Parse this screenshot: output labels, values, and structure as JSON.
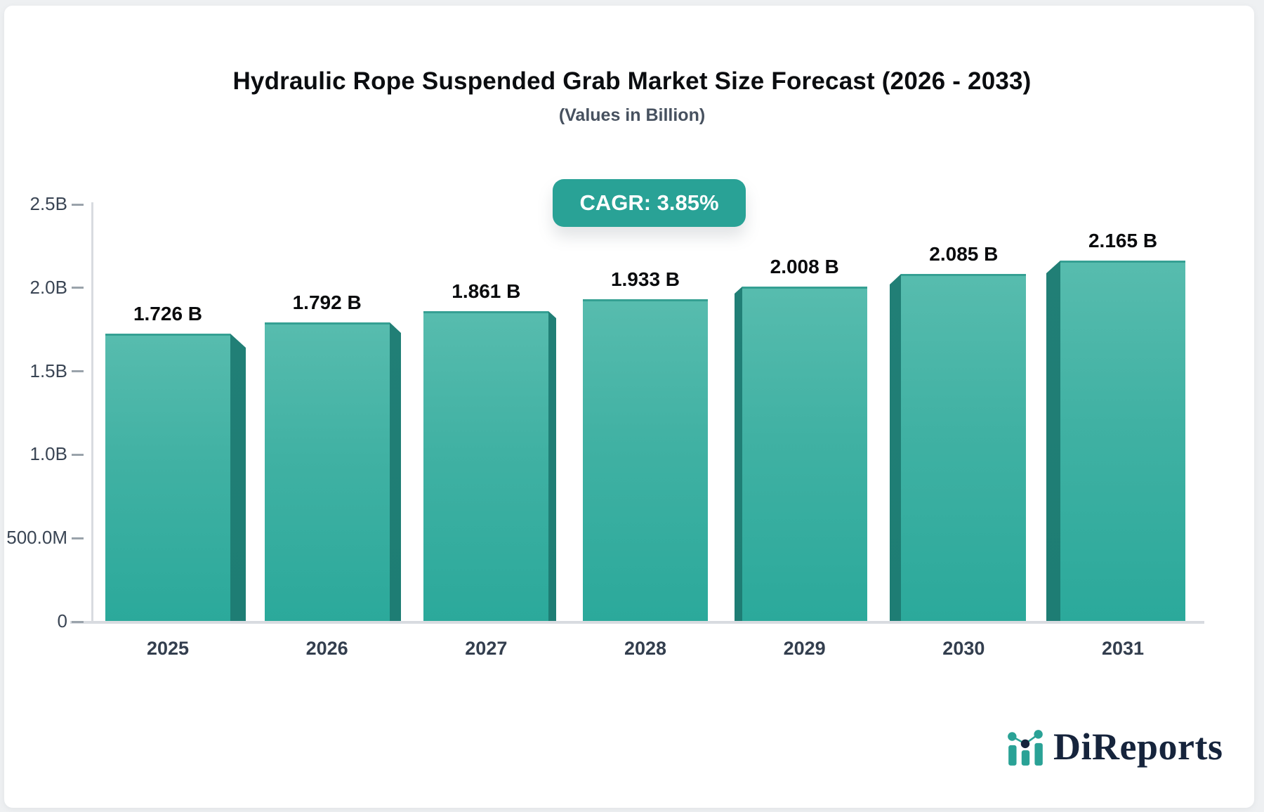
{
  "header": {
    "title": "Hydraulic Rope Suspended Grab Market Size Forecast (2026 - 2033)",
    "subtitle": "(Values in Billion)"
  },
  "badge": {
    "label": "CAGR: 3.85%",
    "color": "#29a296"
  },
  "logo": {
    "text": "DiReports"
  },
  "colors": {
    "bar_front_top": "#57bcae",
    "bar_front_bottom": "#2ba99b",
    "bar_side": "#1e7d74",
    "axis": "#d8dbe0",
    "tick_text": "#3a4554",
    "value_text": "#0a0b0d"
  },
  "chart_data": {
    "type": "bar",
    "title": "Hydraulic Rope Suspended Grab Market Size Forecast (2026 - 2033)",
    "subtitle": "(Values in Billion)",
    "categories": [
      "2025",
      "2026",
      "2027",
      "2028",
      "2029",
      "2030",
      "2031"
    ],
    "values": [
      1.726,
      1.792,
      1.861,
      1.933,
      2.008,
      2.085,
      2.165
    ],
    "value_labels": [
      "1.726 B",
      "1.792 B",
      "1.861 B",
      "1.933 B",
      "2.008 B",
      "2.085 B",
      "2.165 B"
    ],
    "unit": "Billion",
    "cagr": "3.85%",
    "xlabel": "",
    "ylabel": "",
    "ylim": [
      0,
      2.5
    ],
    "y_ticks": [
      {
        "value": 2.5,
        "label": "2.5B"
      },
      {
        "value": 2.0,
        "label": "2.0B"
      },
      {
        "value": 1.5,
        "label": "1.5B"
      },
      {
        "value": 1.0,
        "label": "1.0B"
      },
      {
        "value": 0.5,
        "label": "500.0M"
      },
      {
        "value": 0,
        "label": "0"
      }
    ],
    "grid": false,
    "legend": false,
    "style": "3d-extruded-bars-center-perspective"
  }
}
